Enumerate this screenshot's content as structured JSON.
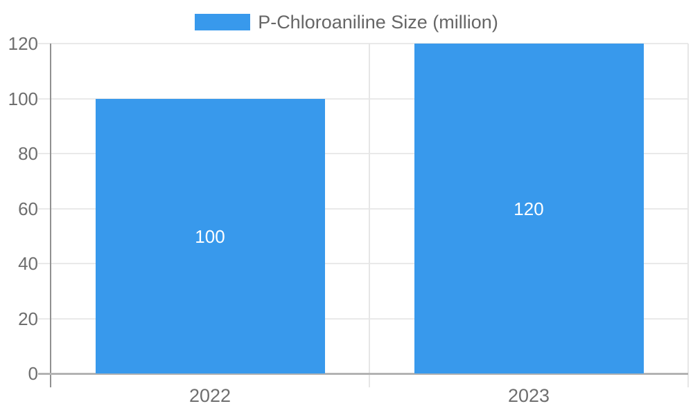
{
  "chart_data": {
    "type": "bar",
    "legend": "P-Chloroaniline Size (million)",
    "categories": [
      "2022",
      "2023"
    ],
    "values": [
      100,
      120
    ],
    "value_labels": [
      "100",
      "120"
    ],
    "yticks": [
      0,
      20,
      40,
      60,
      80,
      100,
      120
    ],
    "ylim": [
      0,
      120
    ],
    "grid": true,
    "legend_position": "top",
    "bar_color": "#3899EC",
    "value_label_color": "#ffffff",
    "axis_text_color": "#6e6e6e",
    "legend_text_color": "#666666"
  }
}
